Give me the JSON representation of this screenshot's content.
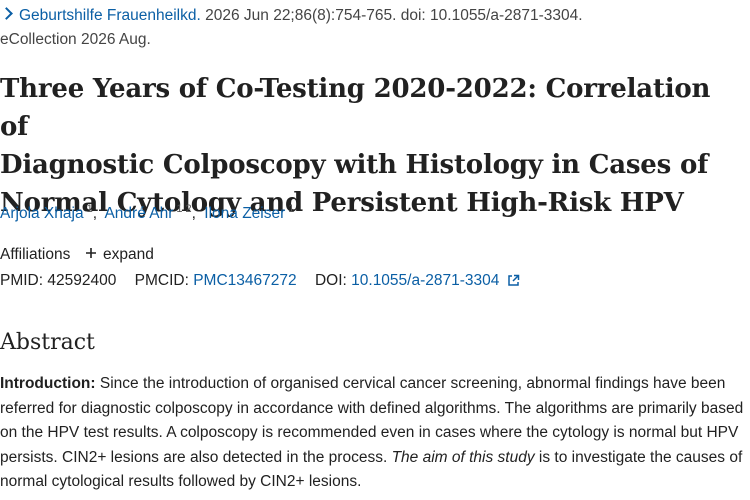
{
  "citation": {
    "journal": "Geburtshilfe Frauenheilkd.",
    "details": "2026 Jun 22;86(8):754-765. doi: 10.1055/a-2871-3304.",
    "ecollection": "eCollection 2026 Aug."
  },
  "title": {
    "line1": "Three Years of Co-Testing 2020-2022: Correlation of",
    "line2": "Diagnostic Colposcopy with Histology in Cases of",
    "line3": "Normal Cytology and Persistent High-Risk HPV"
  },
  "authors": [
    {
      "name": "Arjola Xhaja",
      "affil": "1"
    },
    {
      "name": "André Ahr",
      "affil": "1",
      "affil2": "2"
    },
    {
      "name": "Ilona Zeiser",
      "affil": "1"
    }
  ],
  "affiliations": {
    "label": "Affiliations",
    "expand": "expand"
  },
  "ids": {
    "pmid_label": "PMID:",
    "pmid": "42592400",
    "pmcid_label": "PMCID:",
    "pmcid": "PMC13467272",
    "doi_label": "DOI:",
    "doi": "10.1055/a-2871-3304"
  },
  "abstract": {
    "heading": "Abstract",
    "intro_label": "Introduction:",
    "text_a": "Since the introduction of organised cervical cancer screening, abnormal findings have been referred for diagnostic colposcopy in accordance with defined algorithms. The algorithms are primarily based on the HPV test results. A colposcopy is recommended even in cases where the cytology is normal but HPV persists. CIN2+ lesions are also detected in the process.",
    "aim_italic": "The aim of this study",
    "text_b": "is to investigate the causes of normal cytological results followed by CIN2+ lesions."
  },
  "colors": {
    "link": "#0b5fa5",
    "text": "#212121"
  },
  "icons": [
    "chevron-right-icon",
    "plus-icon",
    "external-link-icon"
  ]
}
